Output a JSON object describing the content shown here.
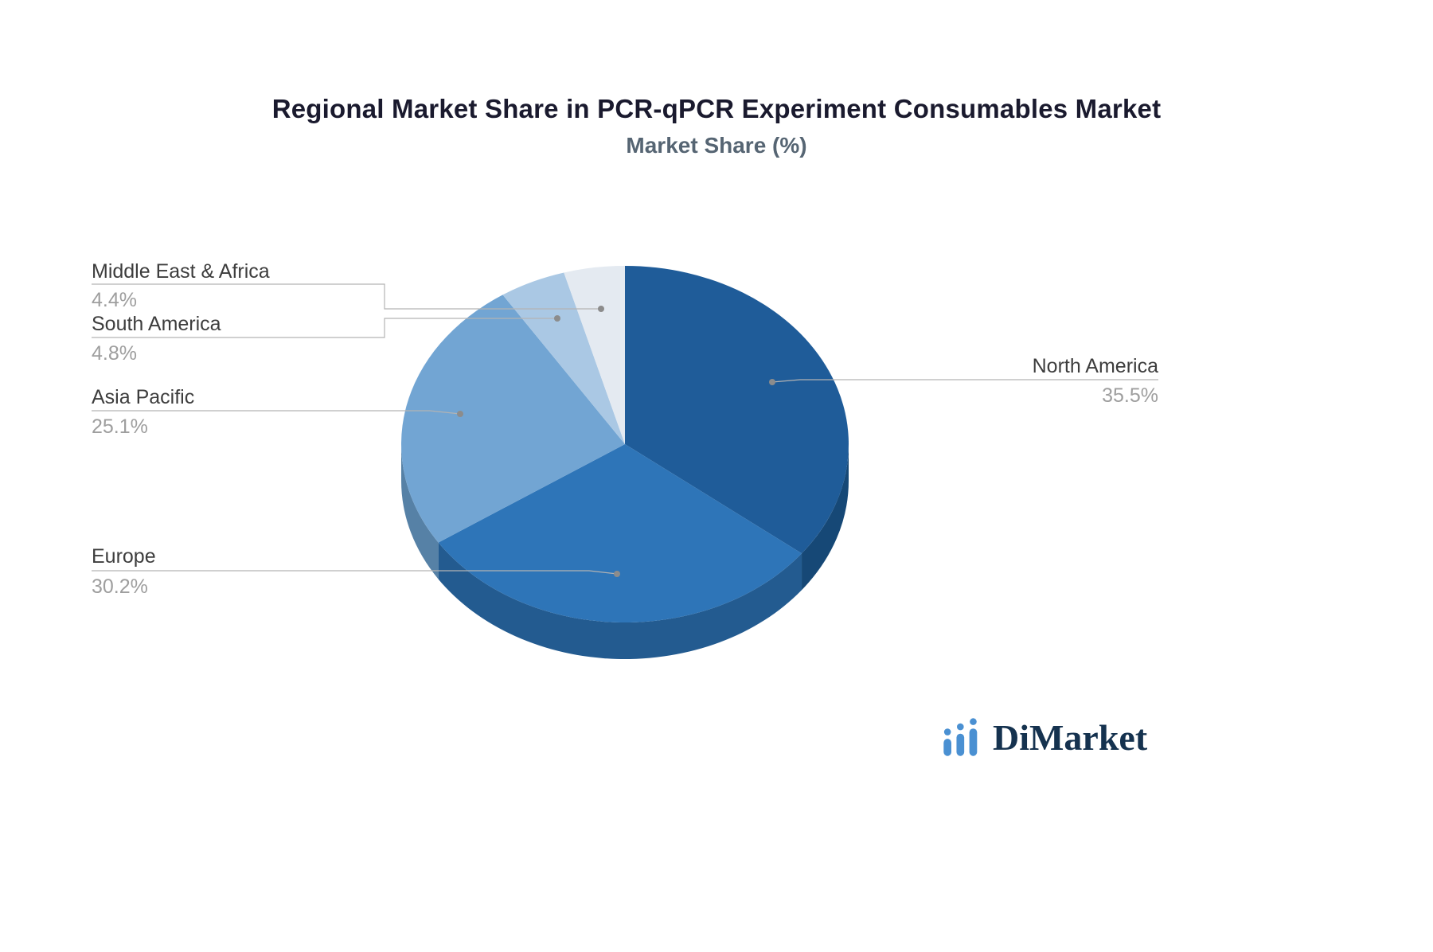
{
  "header": {
    "title": "Regional Market Share in PCR-qPCR Experiment Consumables Market",
    "subtitle": "Market Share (%)"
  },
  "branding": {
    "logo_text": "DiMarket"
  },
  "chart_data": {
    "type": "pie",
    "title": "Regional Market Share in PCR-qPCR Experiment Consumables Market",
    "subtitle": "Market Share (%)",
    "unit": "%",
    "style": "3d",
    "direction": "clockwise",
    "start_angle": "12 o'clock",
    "legend": "none",
    "labels_outside": true,
    "slices": [
      {
        "label": "North America",
        "value": 35.5,
        "pct": "35.5%",
        "color": "#1f5c99",
        "side_color": "#164876"
      },
      {
        "label": "Europe",
        "value": 30.2,
        "pct": "30.2%",
        "color": "#2e75b8",
        "side_color": "#235b90"
      },
      {
        "label": "Asia Pacific",
        "value": 25.1,
        "pct": "25.1%",
        "color": "#72a5d3",
        "side_color": "#5681a6"
      },
      {
        "label": "South America",
        "value": 4.8,
        "pct": "4.8%",
        "color": "#aac8e4",
        "side_color": "#86a0b8"
      },
      {
        "label": "Middle East & Africa",
        "value": 4.4,
        "pct": "4.4%",
        "color": "#e4eaf1",
        "side_color": "#b8c2cc"
      }
    ]
  }
}
